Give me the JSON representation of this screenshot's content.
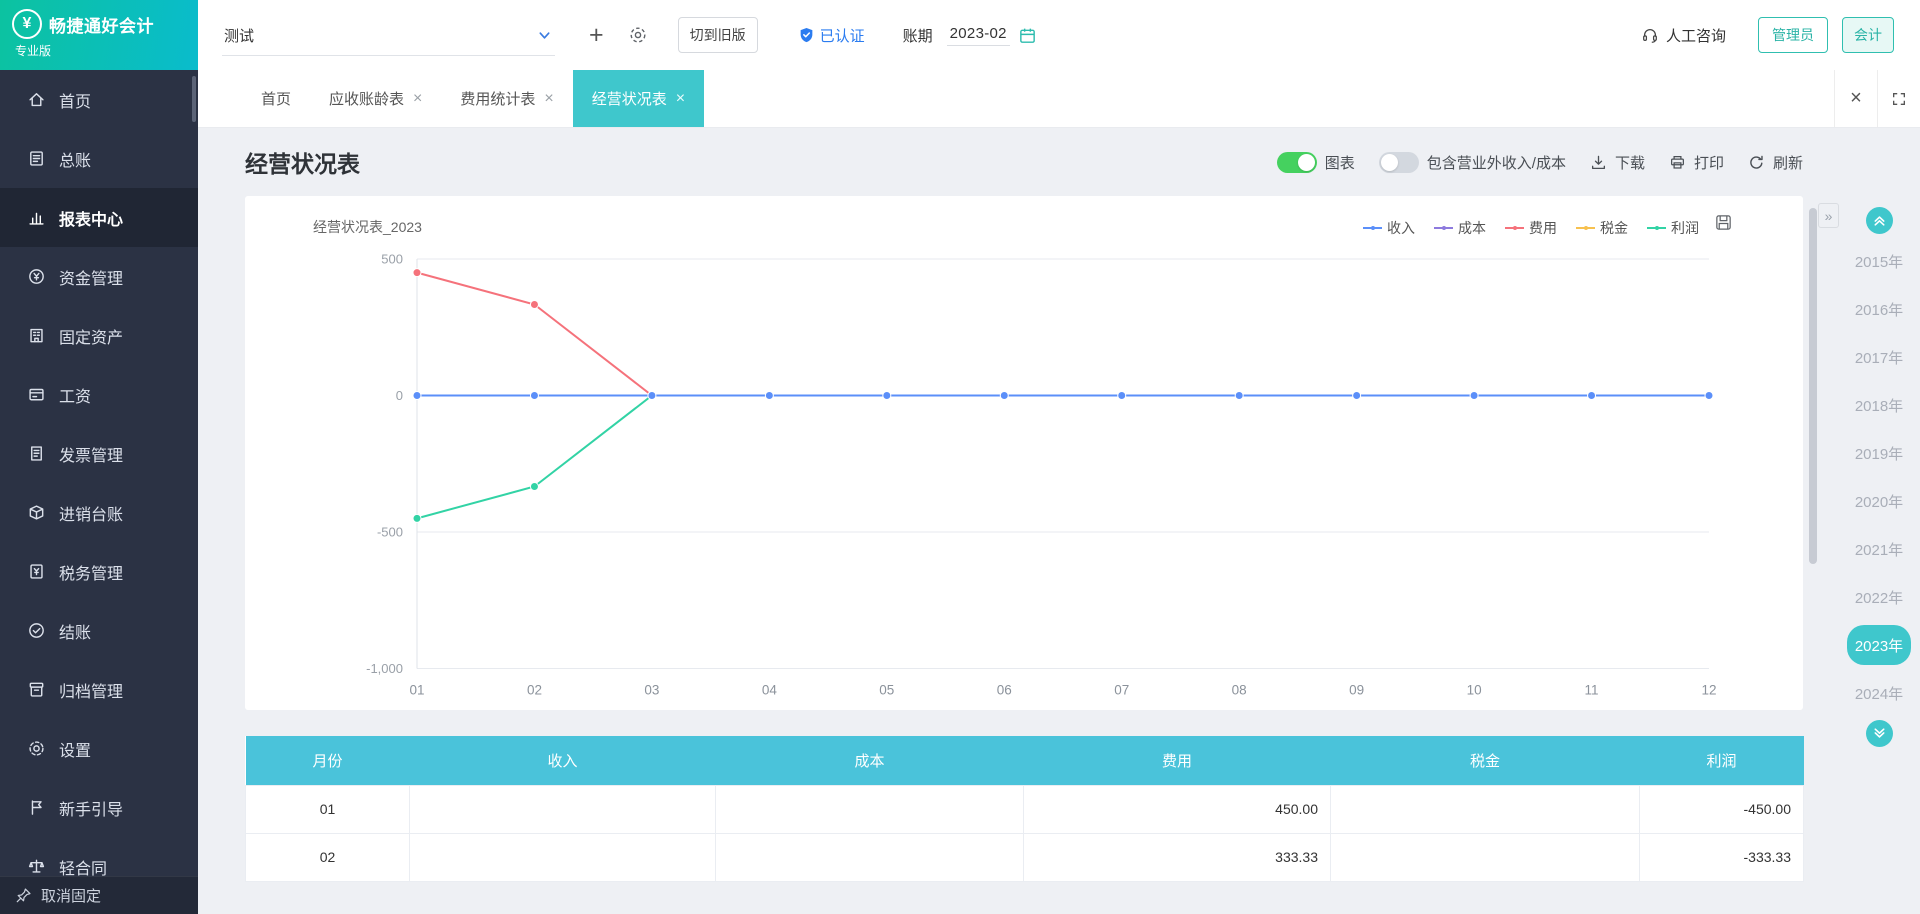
{
  "app": {
    "title": "畅捷通好会计",
    "subtitle": "专业版",
    "logo_glyph": "¥",
    "logo_icon": "yuan-logo-icon"
  },
  "topbar": {
    "company": "测试",
    "add_glyph": "+",
    "switch_old": "切到旧版",
    "certified": "已认证",
    "period_label": "账期",
    "period_value": "2023-02",
    "consult": "人工咨询",
    "admin": "管理员",
    "accountant": "会计"
  },
  "sidebar": {
    "items": [
      {
        "label": "首页",
        "icon": "home-icon",
        "active": false
      },
      {
        "label": "总账",
        "icon": "ledger-icon",
        "active": false
      },
      {
        "label": "报表中心",
        "icon": "report-icon",
        "active": true
      },
      {
        "label": "资金管理",
        "icon": "fund-icon",
        "active": false
      },
      {
        "label": "固定资产",
        "icon": "asset-icon",
        "active": false
      },
      {
        "label": "工资",
        "icon": "salary-icon",
        "active": false
      },
      {
        "label": "发票管理",
        "icon": "invoice-icon",
        "active": false
      },
      {
        "label": "进销台账",
        "icon": "inventory-icon",
        "active": false
      },
      {
        "label": "税务管理",
        "icon": "tax-icon",
        "active": false
      },
      {
        "label": "结账",
        "icon": "closing-icon",
        "active": false
      },
      {
        "label": "归档管理",
        "icon": "archive-icon",
        "active": false
      },
      {
        "label": "设置",
        "icon": "settings-icon",
        "active": false
      },
      {
        "label": "新手引导",
        "icon": "guide-icon",
        "active": false
      },
      {
        "label": "轻合同",
        "icon": "contract-icon",
        "active": false
      }
    ],
    "unpin": "取消固定"
  },
  "tabs": {
    "close_glyph": "×",
    "items": [
      {
        "label": "首页",
        "closable": false,
        "active": false
      },
      {
        "label": "应收账龄表",
        "closable": true,
        "active": false
      },
      {
        "label": "费用统计表",
        "closable": true,
        "active": false
      },
      {
        "label": "经营状况表",
        "closable": true,
        "active": true
      }
    ]
  },
  "page": {
    "title": "经营状况表",
    "toggles": [
      {
        "label": "图表",
        "on": true
      },
      {
        "label": "包含营业外收入/成本",
        "on": false
      }
    ],
    "actions": [
      {
        "label": "下载",
        "icon": "download-icon"
      },
      {
        "label": "打印",
        "icon": "print-icon"
      },
      {
        "label": "刷新",
        "icon": "refresh-icon"
      }
    ]
  },
  "chart_data": {
    "type": "line",
    "title": "经营状况表_2023",
    "x": [
      "01",
      "02",
      "03",
      "04",
      "05",
      "06",
      "07",
      "08",
      "09",
      "10",
      "11",
      "12"
    ],
    "ylim": [
      -1000,
      500
    ],
    "yticks": [
      {
        "value": 500,
        "label": "500"
      },
      {
        "value": 0,
        "label": "0"
      },
      {
        "value": -500,
        "label": "-500"
      },
      {
        "value": -1000,
        "label": "-1,000"
      }
    ],
    "grid": true,
    "legend_position": "top-right",
    "series": [
      {
        "name": "收入",
        "color": "#5b8ff9",
        "values": [
          0,
          0,
          0,
          0,
          0,
          0,
          0,
          0,
          0,
          0,
          0,
          0
        ]
      },
      {
        "name": "成本",
        "color": "#8d7ade",
        "values": [
          0,
          0,
          0,
          0,
          0,
          0,
          0,
          0,
          0,
          0,
          0,
          0
        ]
      },
      {
        "name": "费用",
        "color": "#f5727b",
        "values": [
          450,
          333.33,
          0,
          0,
          0,
          0,
          0,
          0,
          0,
          0,
          0,
          0
        ]
      },
      {
        "name": "税金",
        "color": "#f7c14f",
        "values": [
          0,
          0,
          0,
          0,
          0,
          0,
          0,
          0,
          0,
          0,
          0,
          0
        ]
      },
      {
        "name": "利润",
        "color": "#32d3a5",
        "values": [
          -450,
          -333.33,
          0,
          0,
          0,
          0,
          0,
          0,
          0,
          0,
          0,
          0
        ]
      }
    ],
    "draw_order": [
      "成本",
      "税金",
      "费用",
      "利润",
      "收入"
    ]
  },
  "table": {
    "headers": [
      "月份",
      "收入",
      "成本",
      "费用",
      "税金",
      "利润"
    ],
    "rows": [
      [
        "01",
        "",
        "",
        "450.00",
        "",
        "-450.00"
      ],
      [
        "02",
        "",
        "",
        "333.33",
        "",
        "-333.33"
      ]
    ]
  },
  "year_panel": {
    "collapse_glyph": "»",
    "items": [
      "2015年",
      "2016年",
      "2017年",
      "2018年",
      "2019年",
      "2020年",
      "2021年",
      "2022年",
      "2023年",
      "2024年"
    ],
    "selected": "2023年"
  },
  "colors": {
    "accent_teal": "#30bfb0",
    "tab_active": "#3fc7cc",
    "table_header": "#4ac3da",
    "toggle_on": "#45d15f",
    "cert_blue": "#2b7cf0",
    "sidebar_bg": "#2b3244"
  }
}
